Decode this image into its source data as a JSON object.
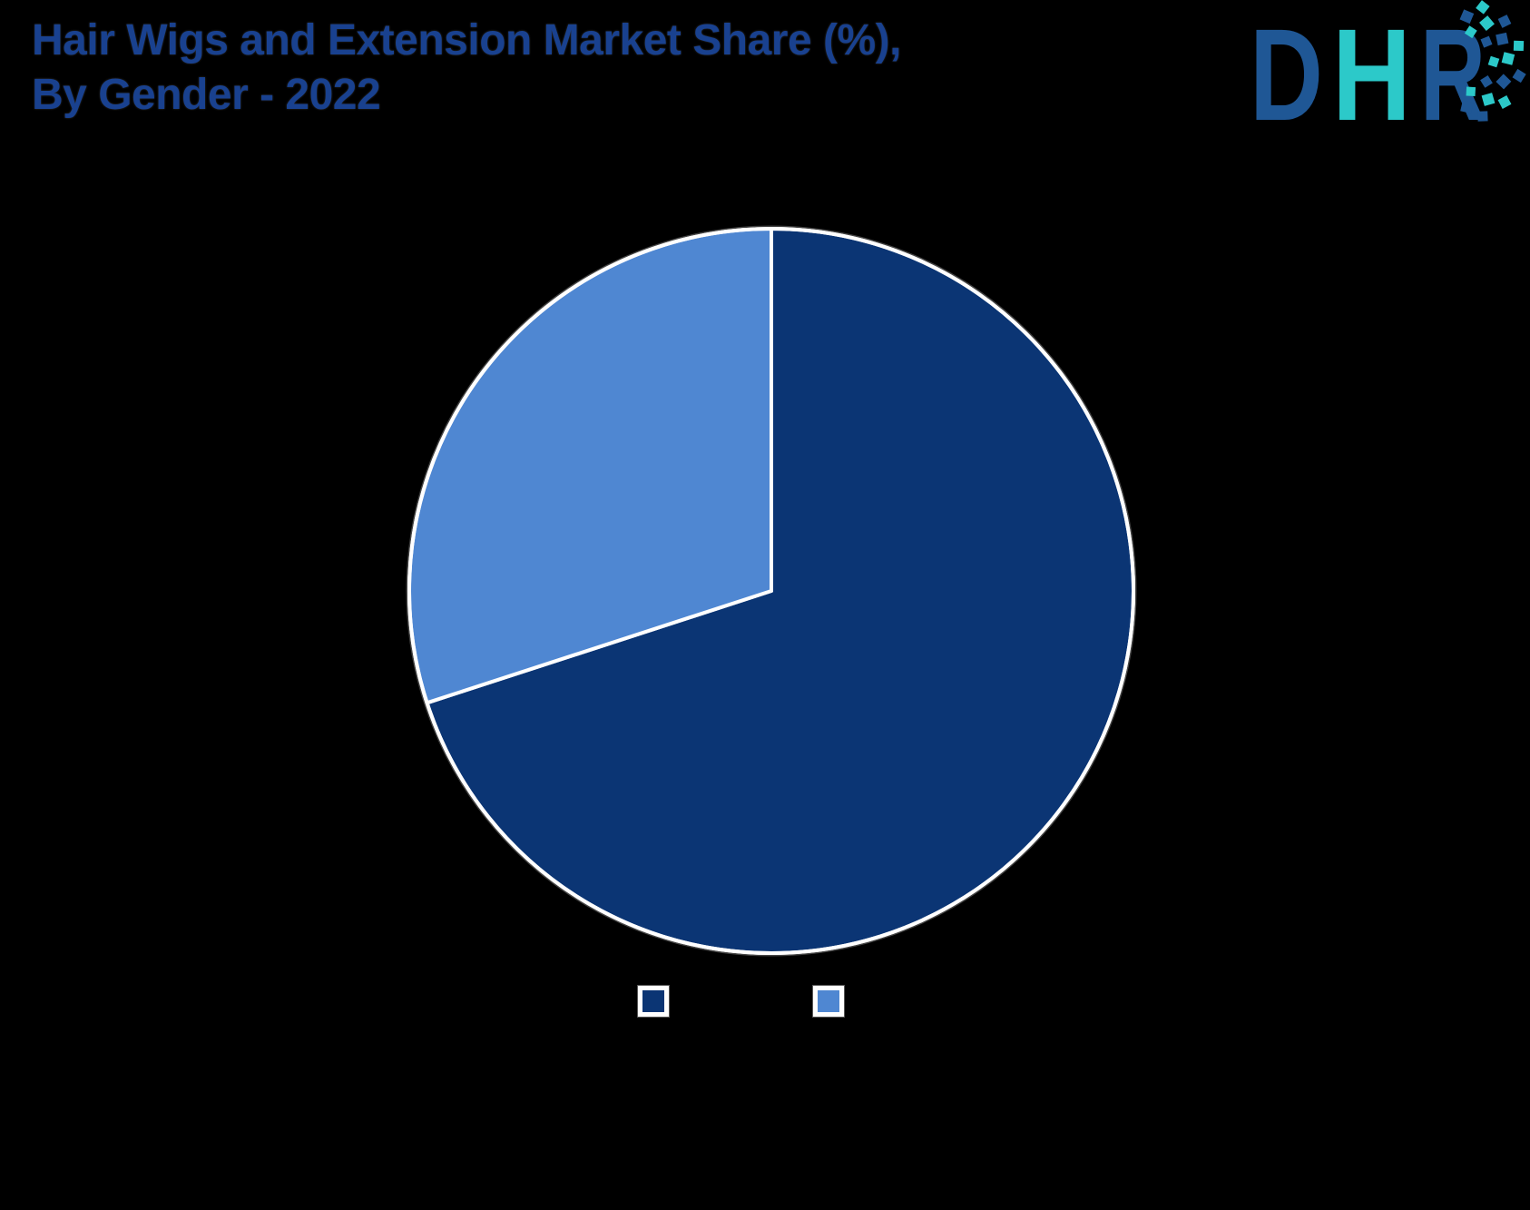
{
  "page": {
    "background_color": "#000000"
  },
  "header": {
    "title_line1": "Hair Wigs and Extension Market Share (%),",
    "title_line2": "By Gender - 2022",
    "title_color": "#19418f"
  },
  "logo": {
    "name": "DHR",
    "letters": [
      {
        "ch": "D",
        "color": "#1f5795"
      },
      {
        "ch": "H",
        "color": "#2cc9c9"
      },
      {
        "ch": "R",
        "color": "#1f5795"
      }
    ],
    "dot_colors": [
      "#2cc9c9",
      "#1f5795"
    ]
  },
  "chart_data": {
    "type": "pie",
    "title": "Hair Wigs and Extension Market Share (%), By Gender - 2022",
    "unit": "%",
    "segments": [
      {
        "label": "",
        "value": 70,
        "color": "#0b3574"
      },
      {
        "label": "",
        "value": 30,
        "color": "#4f87d2"
      }
    ],
    "start_angle_deg": 0,
    "direction": "clockwise",
    "slice_border_color": "#ffffff",
    "legend_position": "bottom",
    "legend_labels_visible": false
  },
  "legend": {
    "items": [
      {
        "swatch_color": "#0b3574",
        "label": ""
      },
      {
        "swatch_color": "#4f87d2",
        "label": ""
      }
    ]
  }
}
